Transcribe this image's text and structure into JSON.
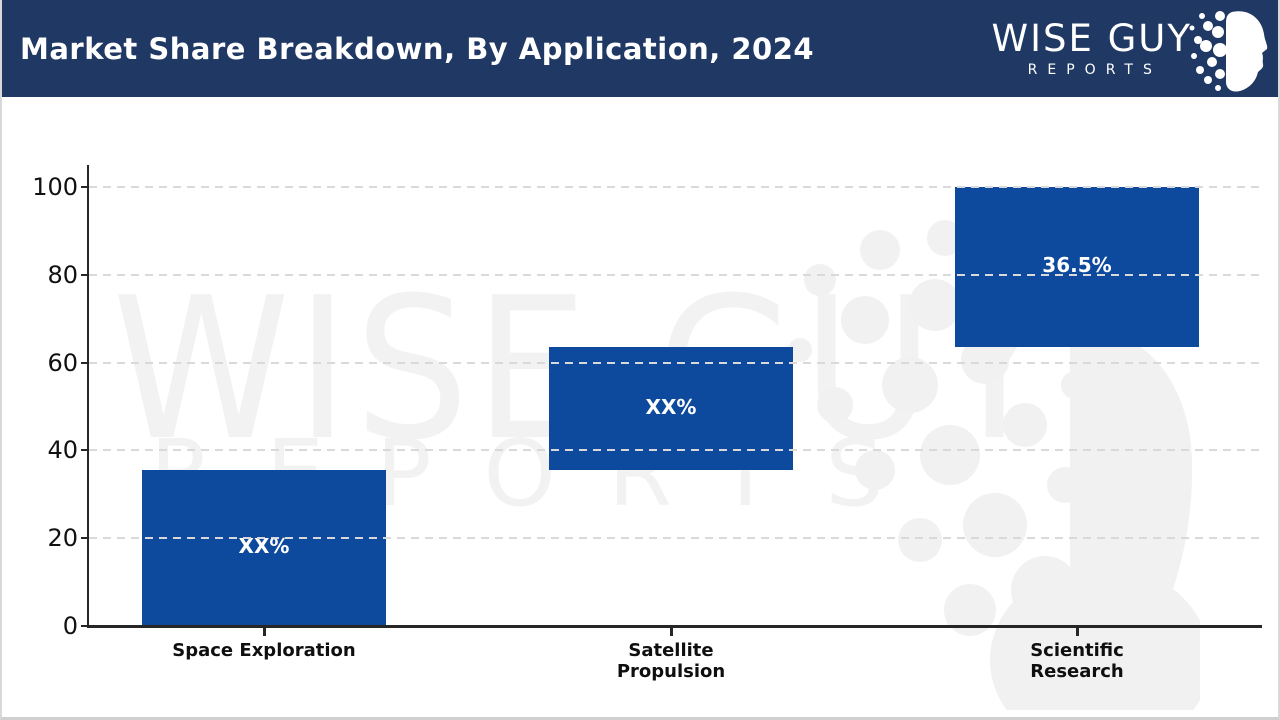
{
  "header": {
    "title": "Market Share Breakdown, By Application, 2024",
    "logo": {
      "wordmark": "WISE GUY",
      "subtext": "REPORTS"
    }
  },
  "watermark": {
    "wordmark": "WISE GUY",
    "subtext": "REPORTS"
  },
  "chart_data": {
    "type": "bar",
    "subtype": "floating-waterfall",
    "title": "Market Share Breakdown, By Application, 2024",
    "categories": [
      "Space Exploration",
      "Satellite\nPropulsion",
      "Scientific\nResearch"
    ],
    "segments": [
      {
        "category": "Space Exploration",
        "start": 0,
        "end": 35.5,
        "label": "XX%"
      },
      {
        "category": "Satellite Propulsion",
        "start": 35.5,
        "end": 63.5,
        "label": "XX%"
      },
      {
        "category": "Scientific Research",
        "start": 63.5,
        "end": 100,
        "label": "36.5%"
      }
    ],
    "xlabel": "",
    "ylabel": "",
    "ylim": [
      0,
      100
    ],
    "yticks": [
      0,
      20,
      40,
      60,
      80,
      100
    ],
    "grid": "dashed-horizontal",
    "legend": "none"
  },
  "colors": {
    "header_bg": "#1f3864",
    "bar": "#0d4a9e",
    "bar_label": "#ffffff",
    "axis": "#262626",
    "gridline": "#d9d9d9",
    "tick_text": "#111111",
    "watermark": "#f2f2f2"
  }
}
